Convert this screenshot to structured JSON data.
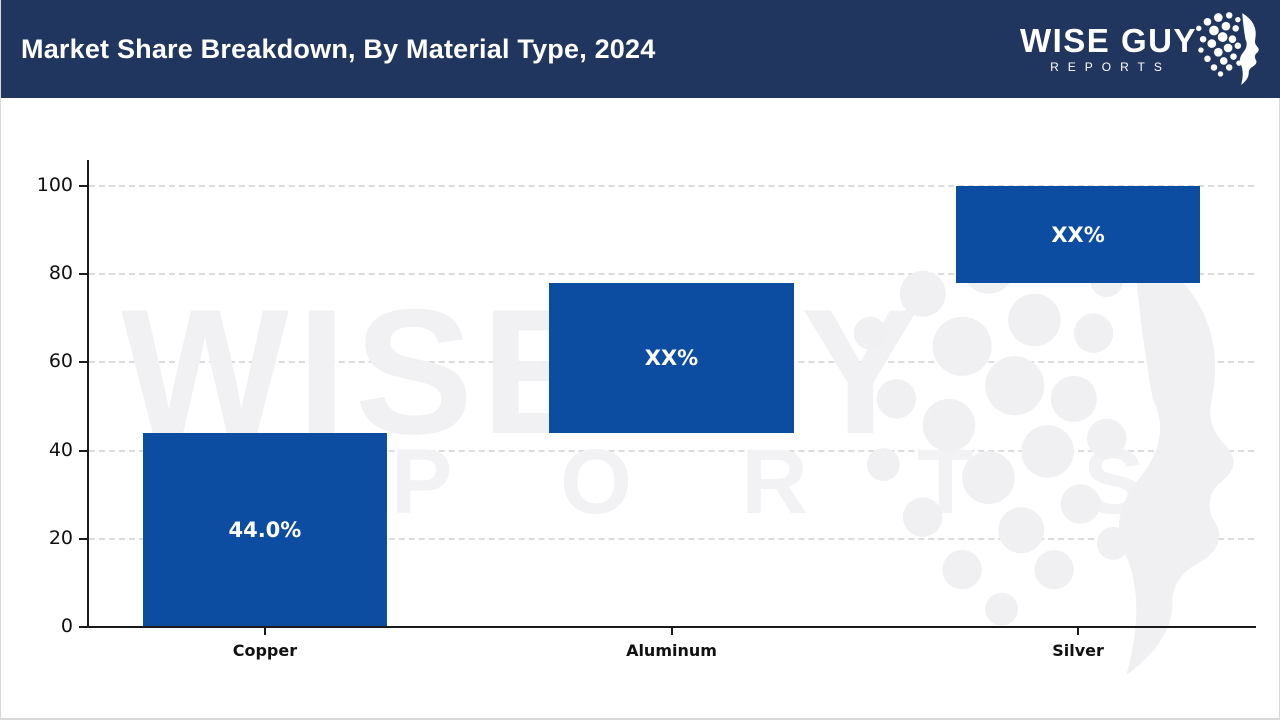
{
  "header": {
    "title": "Market Share Breakdown, By Material Type, 2024",
    "logo": {
      "name": "WISE GUY",
      "subtitle": "REPORTS"
    }
  },
  "watermark": {
    "word1": "WISE",
    "word2": "Y",
    "word3": "P O R T S"
  },
  "chart_data": {
    "type": "bar",
    "subtype": "waterfall",
    "title": "Market Share Breakdown, By Material Type, 2024",
    "categories": [
      "Copper",
      "Aluminum",
      "Silver"
    ],
    "bars": [
      {
        "category": "Copper",
        "start": 0,
        "end": 44,
        "value": 44.0,
        "label": "44.0%"
      },
      {
        "category": "Aluminum",
        "start": 44,
        "end": 78,
        "value": 34.0,
        "label": "XX%"
      },
      {
        "category": "Silver",
        "start": 78,
        "end": 100,
        "value": 22.0,
        "label": "XX%"
      }
    ],
    "xlabel": "",
    "ylabel": "",
    "ylim": [
      0,
      100
    ],
    "yticks": [
      0,
      20,
      40,
      60,
      80,
      100
    ],
    "grid": "horizontal-dashed",
    "legend": "none",
    "bar_color": "#0c4da1",
    "bar_label_color": "#ffffff",
    "axis_color": "#1a1a1a",
    "grid_color": "#dcdcdc"
  },
  "colors": {
    "header_bg": "#21365e",
    "header_text": "#ffffff",
    "watermark": "#f1f1f4",
    "page_bg": "#ffffff"
  }
}
